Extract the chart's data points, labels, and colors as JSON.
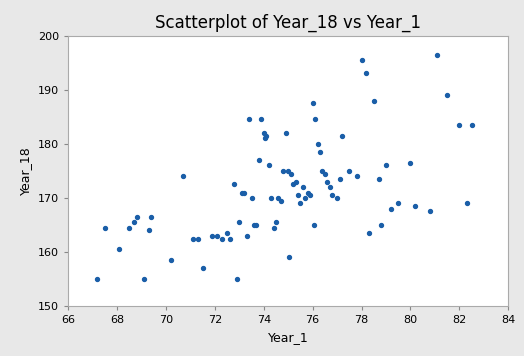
{
  "title": "Scatterplot of Year_18 vs Year_1",
  "xlabel": "Year_1",
  "ylabel": "Year_18",
  "xlim": [
    66,
    84
  ],
  "ylim": [
    150,
    200
  ],
  "xticks": [
    66,
    68,
    70,
    72,
    74,
    76,
    78,
    80,
    82,
    84
  ],
  "yticks": [
    150,
    160,
    170,
    180,
    190,
    200
  ],
  "dot_color": "#1A5EA8",
  "background_color": "#E8E8E8",
  "plot_bg_color": "#FFFFFF",
  "dot_size": 8,
  "title_fontsize": 12,
  "axis_fontsize": 9,
  "tick_fontsize": 8,
  "x": [
    67.2,
    67.5,
    68.1,
    68.5,
    68.7,
    68.8,
    69.1,
    69.3,
    70.7,
    71.1,
    71.5,
    71.9,
    72.1,
    72.3,
    72.5,
    72.6,
    72.8,
    73.0,
    73.1,
    73.2,
    73.3,
    73.5,
    73.6,
    73.7,
    73.8,
    73.9,
    74.0,
    74.1,
    74.2,
    74.3,
    74.4,
    74.5,
    74.6,
    74.7,
    74.8,
    74.9,
    75.0,
    75.1,
    75.2,
    75.3,
    75.4,
    75.5,
    75.6,
    75.7,
    75.8,
    75.9,
    76.0,
    76.1,
    76.2,
    76.3,
    76.4,
    76.5,
    76.6,
    76.7,
    76.8,
    77.0,
    77.2,
    77.5,
    77.8,
    78.0,
    78.2,
    78.3,
    78.5,
    78.7,
    79.0,
    79.5,
    80.0,
    80.2,
    81.1,
    81.5,
    82.0,
    82.3,
    69.4,
    70.2,
    71.3,
    72.9,
    73.4,
    74.05,
    75.05,
    76.05,
    77.1,
    78.8,
    79.2,
    80.8,
    82.5
  ],
  "y": [
    155.0,
    164.5,
    160.5,
    164.5,
    165.5,
    166.5,
    155.0,
    164.0,
    174.0,
    162.5,
    157.0,
    163.0,
    163.0,
    162.5,
    163.5,
    162.5,
    172.5,
    165.5,
    171.0,
    171.0,
    163.0,
    170.0,
    165.0,
    165.0,
    177.0,
    184.5,
    182.0,
    181.5,
    176.0,
    170.0,
    164.5,
    165.5,
    170.0,
    169.5,
    175.0,
    182.0,
    175.0,
    174.5,
    172.5,
    173.0,
    170.5,
    169.0,
    172.0,
    170.0,
    171.0,
    170.5,
    187.5,
    184.5,
    180.0,
    178.5,
    175.0,
    174.5,
    173.0,
    172.0,
    170.5,
    170.0,
    181.5,
    175.0,
    174.0,
    195.5,
    193.0,
    163.5,
    188.0,
    173.5,
    176.0,
    169.0,
    176.5,
    168.5,
    196.5,
    189.0,
    183.5,
    169.0,
    166.5,
    158.5,
    162.5,
    155.0,
    184.5,
    181.0,
    159.0,
    165.0,
    173.5,
    165.0,
    168.0,
    167.5,
    183.5
  ]
}
